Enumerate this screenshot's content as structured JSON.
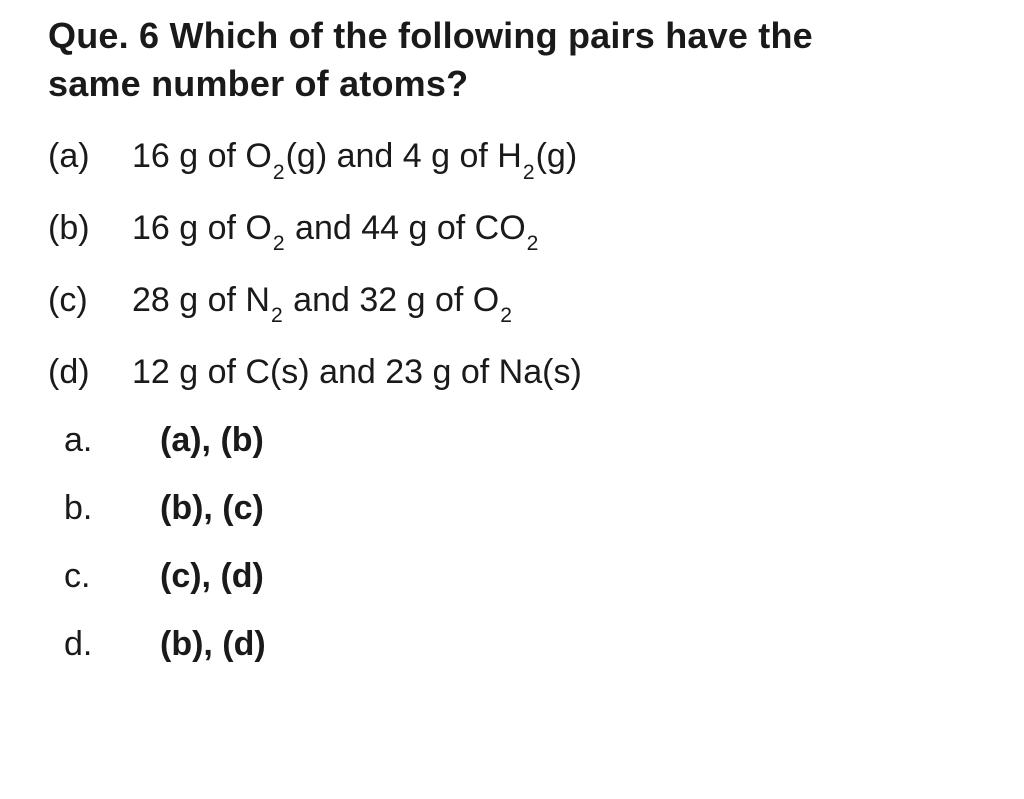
{
  "colors": {
    "background": "#ffffff",
    "text": "#1a1a1a"
  },
  "typography": {
    "family": "Verdana, Geneva, sans-serif",
    "question_weight": 700,
    "question_size_pt": 27,
    "option_size_pt": 26,
    "answer_size_pt": 26
  },
  "question": {
    "number_prefix": "Que. 6",
    "line1": "Que. 6 Which of the following pairs have the",
    "line2": "same number of atoms?"
  },
  "options": {
    "a": {
      "label": "(a)",
      "part1": "16 g of O",
      "sub1": "2",
      "part2": "(g) and 4 g of H",
      "sub2": "2",
      "part3": "(g)"
    },
    "b": {
      "label": "(b)",
      "part1": "16 g of O",
      "sub1": "2",
      "part2": " and 44 g of CO",
      "sub2": "2",
      "part3": ""
    },
    "c": {
      "label": "(c)",
      "part1": "28 g of N",
      "sub1": "2",
      "part2": " and 32 g of O",
      "sub2": "2",
      "part3": ""
    },
    "d": {
      "label": "(d)",
      "text": "12 g of C(s) and 23 g of Na(s)"
    }
  },
  "answers": {
    "a": {
      "label": "a.",
      "text": "(a), (b)"
    },
    "b": {
      "label": "b.",
      "text": "(b), (c)"
    },
    "c": {
      "label": "c.",
      "text": "(c), (d)"
    },
    "d": {
      "label": "d.",
      "text": "(b), (d)"
    }
  }
}
